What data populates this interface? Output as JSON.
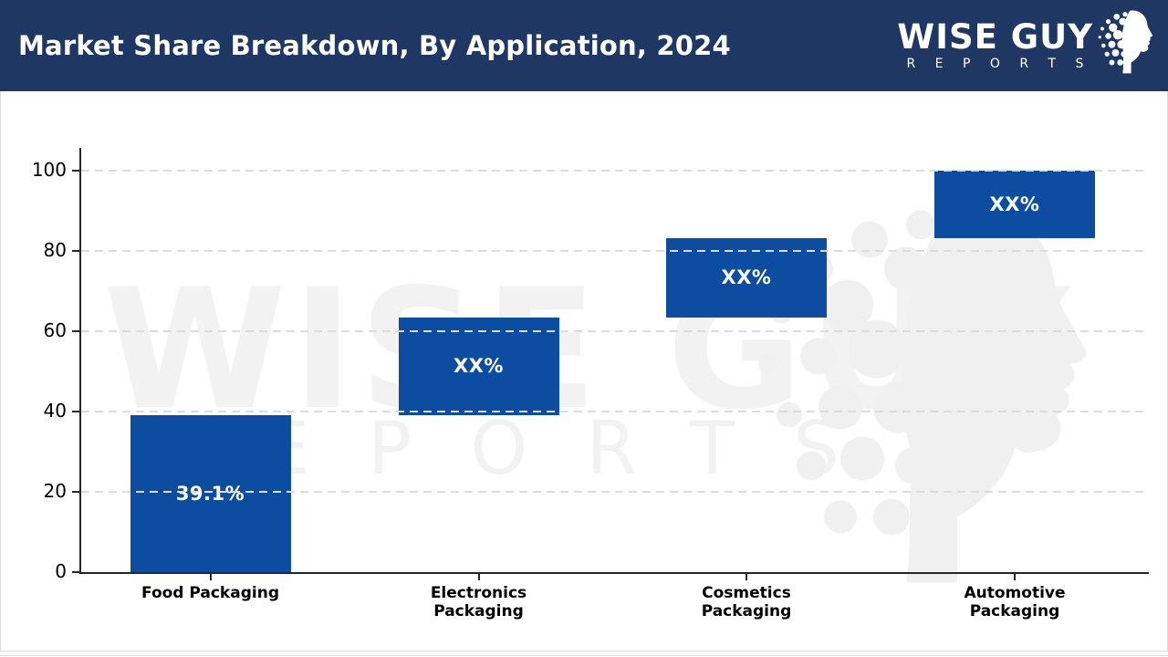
{
  "header": {
    "background": "#1f3763",
    "title": "Market Share Breakdown, By Application, 2024",
    "logo": {
      "wordmark": "WISE GUY",
      "subtext": "R E P O R T S"
    }
  },
  "watermark": {
    "line1": "WISE GUY",
    "line2": "REPORTS"
  },
  "chart_data": {
    "type": "bar",
    "subtype": "floating-waterfall",
    "title": "Market Share Breakdown, By Application, 2024",
    "categories": [
      "Food Packaging",
      "Electronics Packaging",
      "Cosmetics Packaging",
      "Automotive Packaging"
    ],
    "xlabel_lines": [
      [
        "Food Packaging"
      ],
      [
        "Electronics",
        "Packaging"
      ],
      [
        "Cosmetics",
        "Packaging"
      ],
      [
        "Automotive",
        "Packaging"
      ]
    ],
    "segments": [
      {
        "start": 0,
        "end": 39.1
      },
      {
        "start": 39.1,
        "end": 63.5
      },
      {
        "start": 63.5,
        "end": 83.1
      },
      {
        "start": 83.1,
        "end": 100
      }
    ],
    "bar_labels": [
      "39.1%",
      "XX%",
      "XX%",
      "XX%"
    ],
    "bar_color": "#0c4da2",
    "bar_label_color": "#ffffff",
    "ylim": [
      0,
      100
    ],
    "yticks": [
      0,
      20,
      40,
      60,
      80,
      100
    ],
    "grid": "horizontal-dashed",
    "grid_color": "#dcdcdc",
    "axis_color": "#262626",
    "legend_position": "none"
  }
}
